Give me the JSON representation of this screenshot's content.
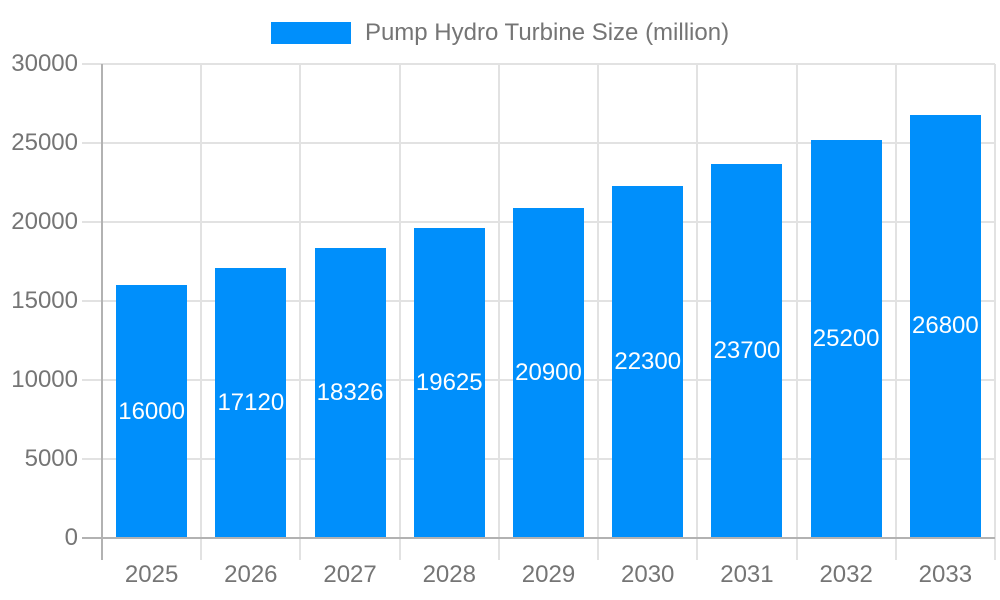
{
  "chart_data": {
    "type": "bar",
    "title": "Pump Hydro Turbine Size (million)",
    "legend_position": "top",
    "categories": [
      "2025",
      "2026",
      "2027",
      "2028",
      "2029",
      "2030",
      "2031",
      "2032",
      "2033"
    ],
    "series": [
      {
        "name": "Pump Hydro Turbine Size (million)",
        "values": [
          16000,
          17120,
          18326,
          19625,
          20900,
          22300,
          23700,
          25200,
          26800
        ]
      }
    ],
    "xlabel": "",
    "ylabel": "",
    "ylim": [
      0,
      30000
    ],
    "y_ticks": [
      0,
      5000,
      10000,
      15000,
      20000,
      25000,
      30000
    ],
    "grid": true,
    "value_labels_position": "inside-center",
    "colors": {
      "bar": "#008ffb",
      "value_label": "#ffffff",
      "axis_text": "#757575",
      "legend_text": "#757575",
      "gridline": "#e2e2e2",
      "axis_line": "#b2b2b2",
      "background": "#ffffff"
    }
  }
}
